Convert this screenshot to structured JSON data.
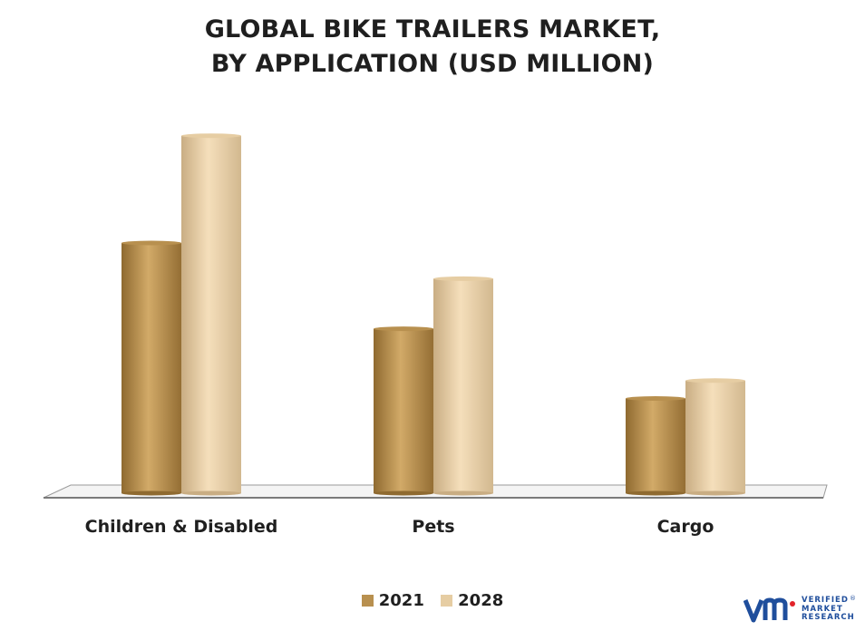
{
  "chart_data": {
    "type": "bar",
    "title_lines": [
      "GLOBAL BIKE TRAILERS MARKET,",
      "BY APPLICATION (USD MILLION)"
    ],
    "categories": [
      "Children & Disabled",
      "Pets",
      "Cargo"
    ],
    "series": [
      {
        "name": "2021",
        "values": [
          140,
          92,
          53
        ],
        "color": "#b8904f"
      },
      {
        "name": "2028",
        "values": [
          200,
          120,
          63
        ],
        "color": "#e6cda3"
      }
    ],
    "ylim": [
      0,
      210
    ],
    "grid": false,
    "legend": "bottom-center"
  },
  "logo": {
    "mark": "vm",
    "brand_lines": [
      "VERIFIED",
      "MARKET",
      "RESEARCH"
    ],
    "registered": "®"
  }
}
